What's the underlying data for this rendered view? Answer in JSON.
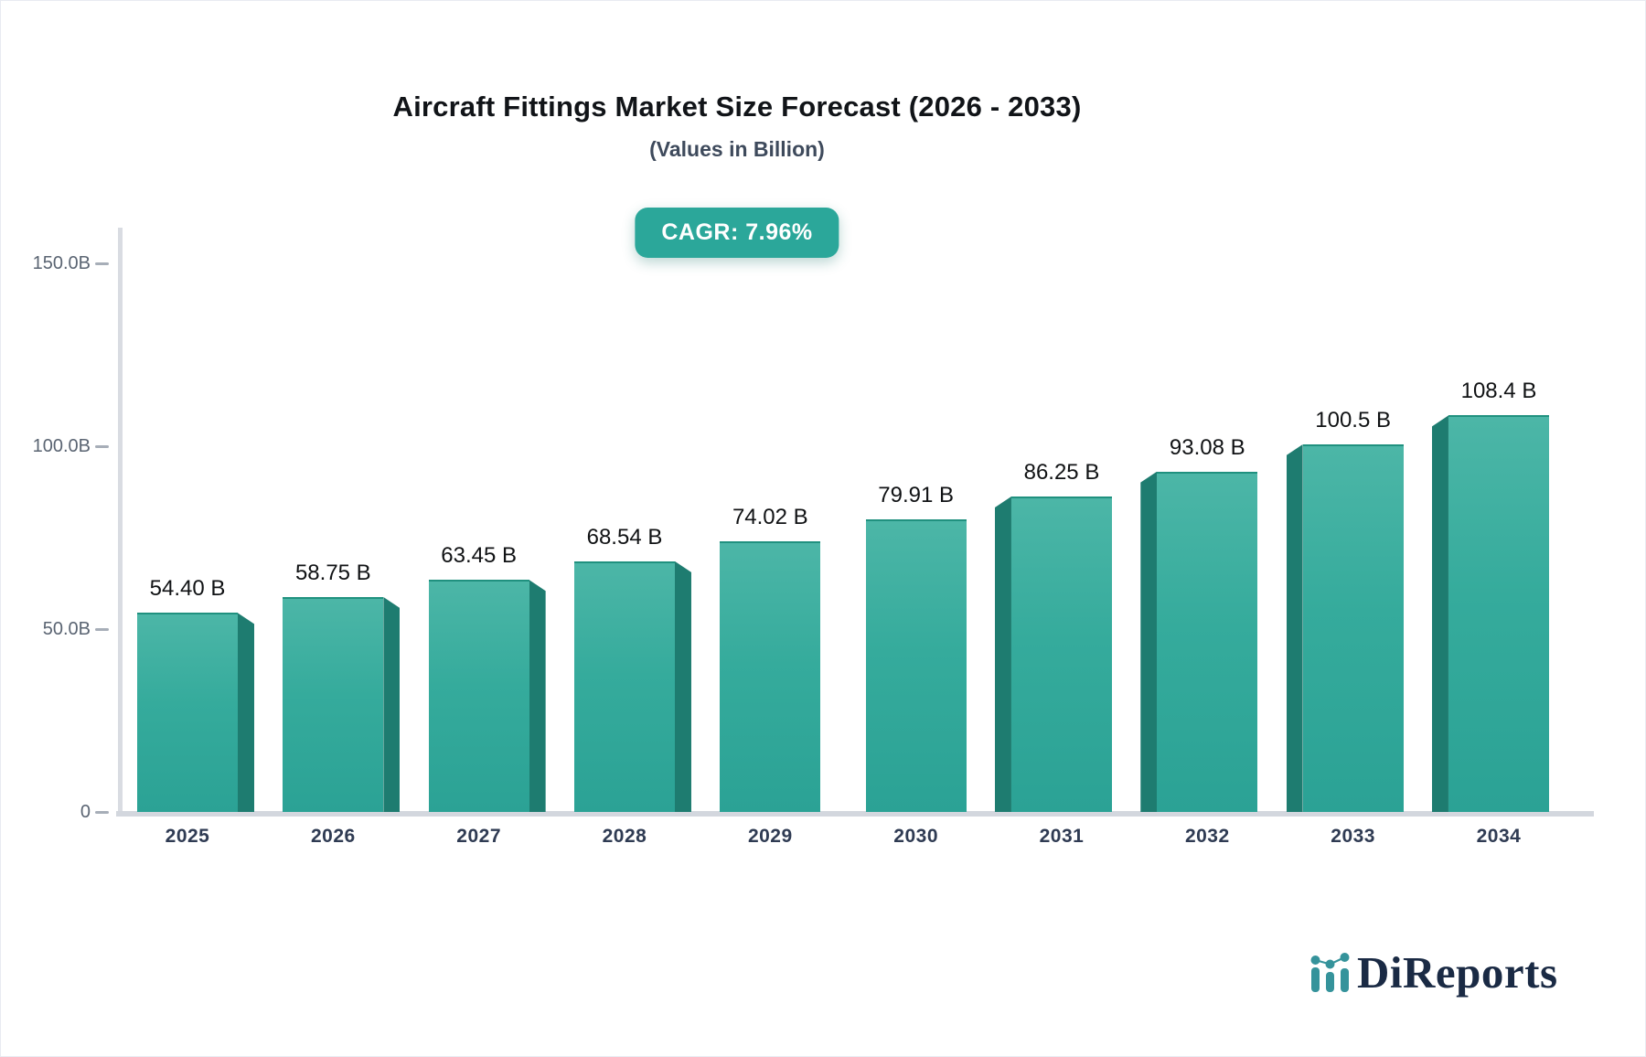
{
  "page": {
    "background": "#ffffff",
    "border_color": "#e8ebf1"
  },
  "header": {
    "title": "Aircraft Fittings Market Size Forecast (2026 - 2033)",
    "subtitle": "(Values in Billion)",
    "cagr_badge": "CAGR: 7.96%"
  },
  "chart_data": {
    "type": "bar",
    "title": "Aircraft Fittings Market Size Forecast (2026 - 2033)",
    "subtitle": "(Values in Billion)",
    "cagr_percent": 7.96,
    "categories": [
      "2025",
      "2026",
      "2027",
      "2028",
      "2029",
      "2030",
      "2031",
      "2032",
      "2033",
      "2034"
    ],
    "values": [
      54.4,
      58.75,
      63.45,
      68.54,
      74.02,
      79.91,
      86.25,
      93.08,
      100.5,
      108.4
    ],
    "value_labels": [
      "54.40 B",
      "58.75 B",
      "63.45 B",
      "68.54 B",
      "74.02 B",
      "79.91 B",
      "86.25 B",
      "93.08 B",
      "100.5 B",
      "108.4 B"
    ],
    "ylim": [
      0,
      150
    ],
    "yticks": [
      {
        "v": 0,
        "label": "0"
      },
      {
        "v": 50,
        "label": "50.0B"
      },
      {
        "v": 100,
        "label": "100.0B"
      },
      {
        "v": 150,
        "label": "150.0B"
      }
    ],
    "grid": false,
    "legend": false,
    "colors": {
      "bar_face_top": "#4cb6a7",
      "bar_face_bottom": "#2ba295",
      "bar_side": "#1e7c70",
      "bar_top_stroke": "#20917f",
      "axis_line": "#d3d7de",
      "tick_label": "#5a6472",
      "category_label": "#2f3b53",
      "value_label": "#101214",
      "badge_bg": "#2ba79a",
      "badge_text": "#ffffff"
    }
  },
  "footer": {
    "brand": "DiReports",
    "brand_color": "#1a2a44",
    "icon_color": "#35939b"
  }
}
